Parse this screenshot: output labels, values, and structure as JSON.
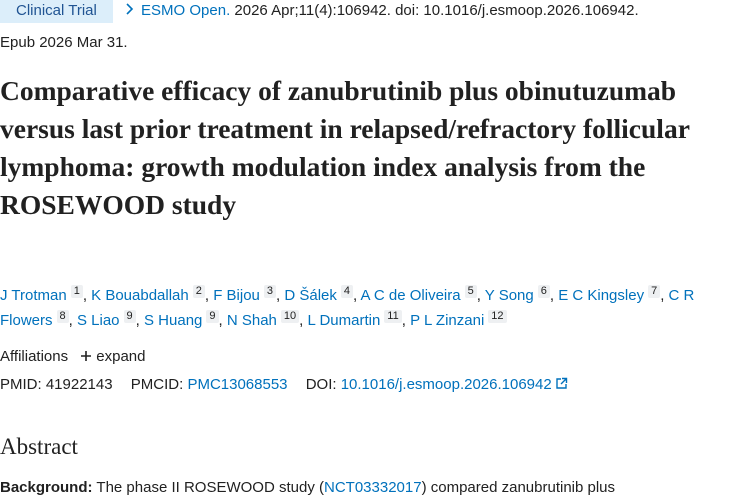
{
  "badge": "Clinical Trial",
  "citation": {
    "journal": "ESMO Open.",
    "details": "2026 Apr;11(4):106942. doi: 10.1016/j.esmoop.2026.106942.",
    "epub": "Epub 2026 Mar 31."
  },
  "title": "Comparative efficacy of zanubrutinib plus obinutuzumab versus last prior treatment in relapsed/refractory follicular lymphoma: growth modulation index analysis from the ROSEWOOD study",
  "authors": {
    "separator": ",",
    "list": [
      {
        "name": "J Trotman",
        "aff": 1
      },
      {
        "name": "K Bouabdallah",
        "aff": 2
      },
      {
        "name": "F Bijou",
        "aff": 3
      },
      {
        "name": "D Šálek",
        "aff": 4
      },
      {
        "name": "A C de Oliveira",
        "aff": 5
      },
      {
        "name": "Y Song",
        "aff": 6
      },
      {
        "name": "E C Kingsley",
        "aff": 7
      },
      {
        "name": "C R Flowers",
        "aff": 8
      },
      {
        "name": "S Liao",
        "aff": 9
      },
      {
        "name": "S Huang",
        "aff": 9
      },
      {
        "name": "N Shah",
        "aff": 10
      },
      {
        "name": "L Dumartin",
        "aff": 11
      },
      {
        "name": "P L Zinzani",
        "aff": 12
      }
    ]
  },
  "affiliations": {
    "label": "Affiliations",
    "toggle": "expand"
  },
  "ids": {
    "pmid_label": "PMID:",
    "pmid": "41922143",
    "pmcid_label": "PMCID:",
    "pmcid": "PMC13068553",
    "doi_label": "DOI:",
    "doi": "10.1016/j.esmoop.2026.106942"
  },
  "abstract": {
    "heading": "Abstract",
    "background_label": "Background:",
    "background_text_1": "The phase II ROSEWOOD study (",
    "background_link": "NCT03332017",
    "background_text_2": ") compared zanubrutinib plus"
  }
}
